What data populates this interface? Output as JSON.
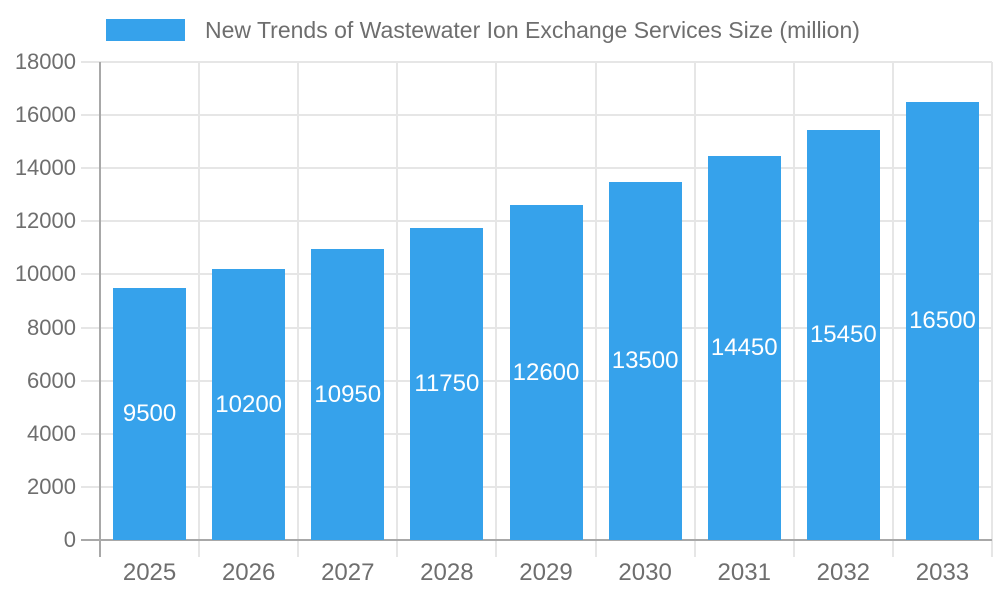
{
  "chart_data": {
    "type": "bar",
    "title": "New Trends of Wastewater Ion Exchange Services Size (million)",
    "categories": [
      "2025",
      "2026",
      "2027",
      "2028",
      "2029",
      "2030",
      "2031",
      "2032",
      "2033"
    ],
    "series": [
      {
        "name": "New Trends of Wastewater Ion Exchange Services Size (million)",
        "values": [
          9500,
          10200,
          10950,
          11750,
          12600,
          13500,
          14450,
          15450,
          16500
        ]
      }
    ],
    "value_labels": [
      "9500",
      "10200",
      "10950",
      "11750",
      "12600",
      "13500",
      "14450",
      "15450",
      "16500"
    ],
    "xlabel": "",
    "ylabel": "",
    "ylim": [
      0,
      18000
    ],
    "y_tick_step": 2000,
    "y_tick_labels": [
      "0",
      "2000",
      "4000",
      "6000",
      "8000",
      "10000",
      "12000",
      "14000",
      "16000",
      "18000"
    ],
    "grid": true,
    "legend_position": "top-left",
    "colors": {
      "bar": "#36A2EB",
      "grid": "#E6E6E6",
      "axis": "#A8A8A8",
      "tick_text": "#6E6E6E",
      "title_text": "#6E6E6E",
      "value_text": "#FFFFFF",
      "background": "#FFFFFF"
    }
  }
}
